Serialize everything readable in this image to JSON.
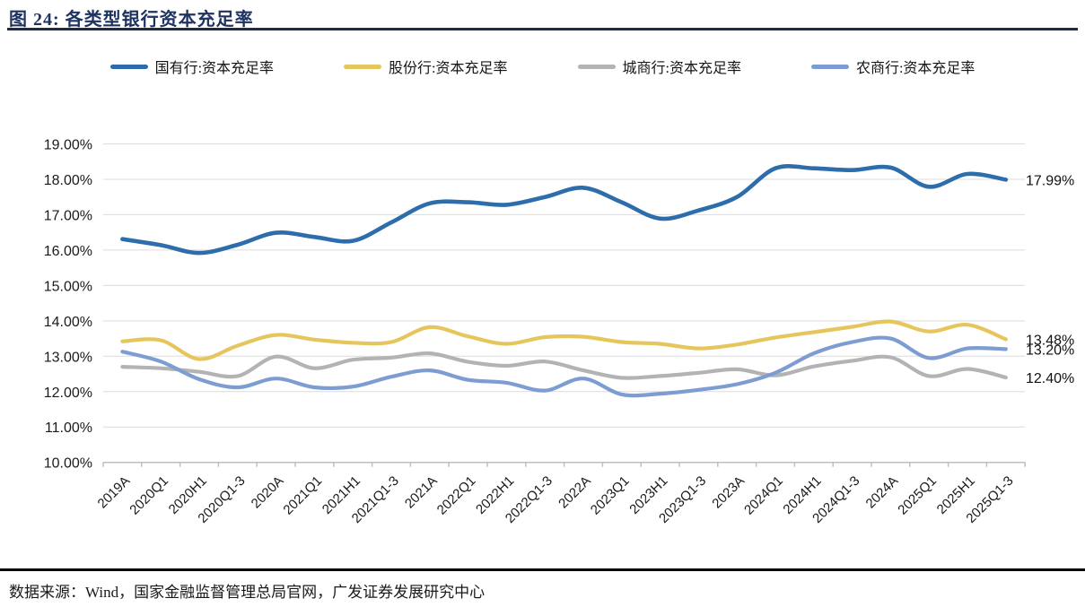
{
  "figure": {
    "title": "图 24:  各类型银行资本充足率",
    "source": "数据来源：Wind，国家金融监督管理总局官网，广发证券发展研究中心"
  },
  "chart_data": {
    "type": "line",
    "title": "各类型银行资本充足率",
    "categories": [
      "2019A",
      "2020Q1",
      "2020H1",
      "2020Q1-3",
      "2020A",
      "2021Q1",
      "2021H1",
      "2021Q1-3",
      "2021A",
      "2022Q1",
      "2022H1",
      "2022Q1-3",
      "2022A",
      "2023Q1",
      "2023H1",
      "2023Q1-3",
      "2023A",
      "2024Q1",
      "2024H1",
      "2024Q1-3",
      "2024A",
      "2025Q1",
      "2025H1",
      "2025Q1-3"
    ],
    "series": [
      {
        "name": "国有行:资本充足率",
        "color": "#2d6dab",
        "stroke_width": 4.6,
        "end_label": "17.99%",
        "values": [
          16.31,
          16.14,
          15.92,
          16.15,
          16.49,
          16.37,
          16.26,
          16.78,
          17.32,
          17.35,
          17.28,
          17.5,
          17.76,
          17.35,
          16.89,
          17.12,
          17.5,
          18.31,
          18.31,
          18.26,
          18.33,
          17.79,
          18.15,
          17.99
        ]
      },
      {
        "name": "股份行:资本充足率",
        "color": "#e6c65c",
        "stroke_width": 4.2,
        "end_label": "13.48%",
        "values": [
          13.42,
          13.45,
          12.92,
          13.3,
          13.6,
          13.47,
          13.38,
          13.4,
          13.82,
          13.56,
          13.35,
          13.54,
          13.55,
          13.4,
          13.35,
          13.22,
          13.33,
          13.53,
          13.68,
          13.83,
          13.98,
          13.7,
          13.89,
          13.48
        ]
      },
      {
        "name": "城商行:资本充足率",
        "color": "#b3b3b3",
        "stroke_width": 4.2,
        "end_label": "12.40%",
        "values": [
          12.7,
          12.66,
          12.56,
          12.44,
          12.99,
          12.66,
          12.9,
          12.96,
          13.08,
          12.84,
          12.73,
          12.85,
          12.6,
          12.39,
          12.44,
          12.53,
          12.63,
          12.46,
          12.71,
          12.87,
          12.97,
          12.44,
          12.64,
          12.4
        ]
      },
      {
        "name": "农商行:资本充足率",
        "color": "#7d9dd2",
        "stroke_width": 4.2,
        "end_label": "13.20%",
        "values": [
          13.13,
          12.85,
          12.35,
          12.12,
          12.37,
          12.12,
          12.14,
          12.42,
          12.6,
          12.33,
          12.25,
          12.03,
          12.37,
          11.92,
          11.94,
          12.05,
          12.21,
          12.53,
          13.08,
          13.4,
          13.5,
          12.95,
          13.22,
          13.2
        ]
      }
    ],
    "y_ticks": [
      "19.00%",
      "18.00%",
      "17.00%",
      "16.00%",
      "15.00%",
      "14.00%",
      "13.00%",
      "12.00%",
      "11.00%",
      "10.00%"
    ],
    "ylim": [
      10,
      19
    ],
    "ytick_step": 1,
    "grid": "horizontal",
    "legend_position": "top",
    "x_label_rotation": -45
  }
}
